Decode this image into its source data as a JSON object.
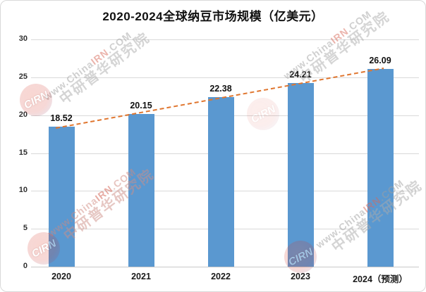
{
  "chart_data": {
    "type": "bar",
    "title": "2020-2024全球纳豆市场规模（亿美元）",
    "categories": [
      "2020",
      "2021",
      "2022",
      "2023",
      "2024（预测）"
    ],
    "values": [
      18.52,
      20.15,
      22.38,
      24.21,
      26.09
    ],
    "data_labels": [
      "18.52",
      "20.15",
      "22.38",
      "24.21",
      "26.09"
    ],
    "ylim": [
      0,
      30
    ],
    "yticks": [
      0,
      5,
      10,
      15,
      20,
      25,
      30
    ],
    "grid": true,
    "legend": "none",
    "bar_color": "#5a98d0",
    "gridline_color": "#d9d9d9",
    "trendline": {
      "type": "linear",
      "style": "dashed",
      "color": "#e0762f"
    }
  },
  "watermark": {
    "latin_pre": "www.China",
    "latin_mid": "IRN",
    "latin_post": ".COM",
    "cn_text": "中研普华研究院",
    "logo_text": "CIRN",
    "gray": "#a5a5a5",
    "red": "#d86a5a",
    "logo_red": "#cf3b2e"
  }
}
